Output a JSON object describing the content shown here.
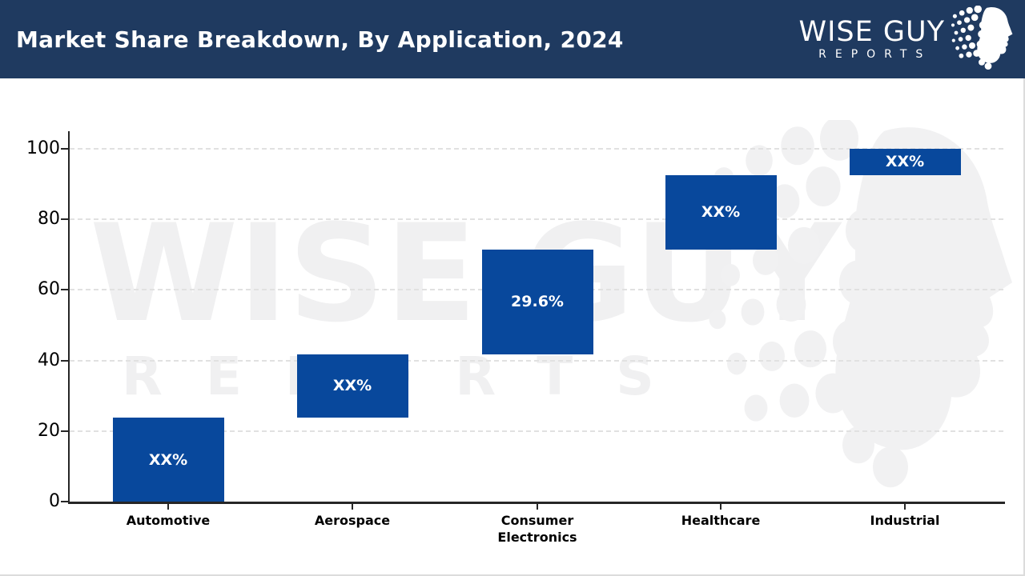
{
  "header": {
    "title": "Market Share Breakdown, By Application, 2024",
    "logo": {
      "name": "WISE GUY",
      "sub": "REPORTS"
    }
  },
  "watermark": {
    "line1": "WISE GUY",
    "line2": "REPORTS"
  },
  "chart_data": {
    "type": "bar",
    "subtype": "floating-waterfall",
    "title": "Market Share Breakdown, By Application, 2024",
    "categories": [
      "Automotive",
      "Aerospace",
      "Consumer\nElectronics",
      "Healthcare",
      "Industrial"
    ],
    "segments": [
      {
        "category": "Automotive",
        "start": 0,
        "end": 23.8,
        "label": "XX%"
      },
      {
        "category": "Aerospace",
        "start": 23.8,
        "end": 41.8,
        "label": "XX%"
      },
      {
        "category": "Consumer\nElectronics",
        "start": 41.8,
        "end": 71.4,
        "label": "29.6%"
      },
      {
        "category": "Healthcare",
        "start": 71.4,
        "end": 92.6,
        "label": "XX%"
      },
      {
        "category": "Industrial",
        "start": 92.6,
        "end": 100,
        "label": "XX%"
      }
    ],
    "xlabel": "",
    "ylabel": "",
    "ylim": [
      0,
      100
    ],
    "yticks": [
      0,
      20,
      40,
      60,
      80,
      100
    ],
    "legend": "none",
    "grid": "horizontal-dashed",
    "colors": {
      "bar": "#08489c",
      "header_bg": "#1f3a60",
      "grid_line": "#e1e1e1",
      "axis_line": "#262626",
      "bar_label_text": "#ffffff",
      "watermark": "#f0f0f1"
    }
  }
}
